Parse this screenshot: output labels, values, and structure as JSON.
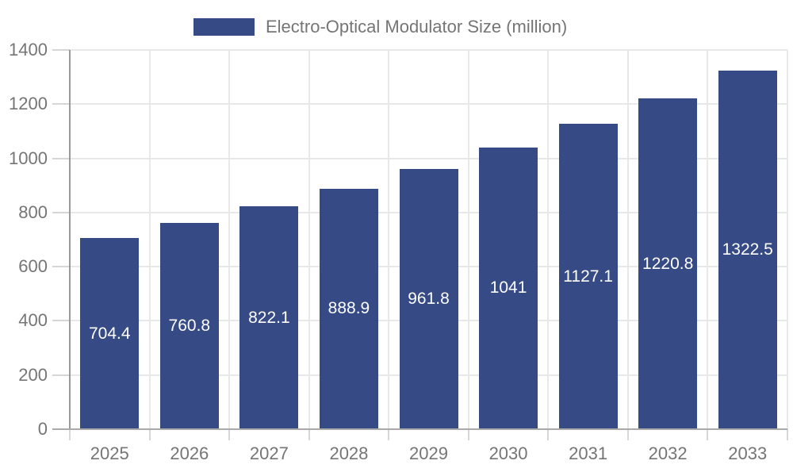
{
  "chart_data": {
    "type": "bar",
    "title": "",
    "legend": "Electro-Optical Modulator Size (million)",
    "categories": [
      "2025",
      "2026",
      "2027",
      "2028",
      "2029",
      "2030",
      "2031",
      "2032",
      "2033"
    ],
    "values": [
      704.4,
      760.8,
      822.1,
      888.9,
      961.8,
      1041,
      1127.1,
      1220.8,
      1322.5
    ],
    "series_name": "Electro-Optical Modulator Size (million)",
    "xlabel": "",
    "ylabel": "",
    "ylim": [
      0,
      1400
    ],
    "yticks": [
      0,
      200,
      400,
      600,
      800,
      1000,
      1200,
      1400
    ],
    "grid": true,
    "legend_position": "top-center",
    "bar_labels_inside": true,
    "colors": {
      "bar": "#364A85",
      "bar_label": "#ffffff",
      "axis_y_line": "#999999",
      "axis_x_line": "#aaaaaa",
      "grid_line": "#e8e8e8",
      "tick_line": "#d6d6d6",
      "text": "#757575",
      "background": "#ffffff"
    }
  }
}
